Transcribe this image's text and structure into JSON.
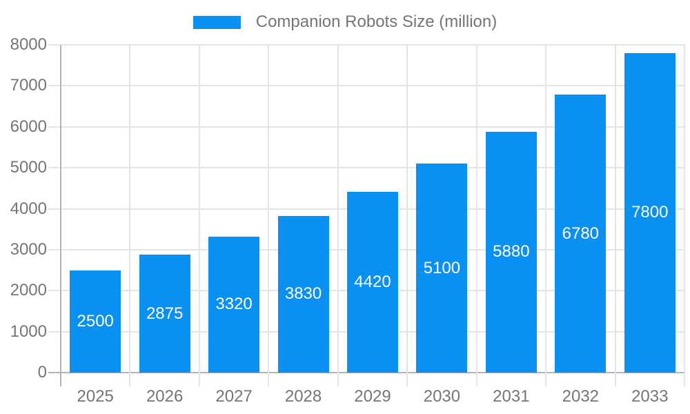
{
  "legend": {
    "label": "Companion Robots Size (million)"
  },
  "chart_data": {
    "type": "bar",
    "title": "Companion Robots Size (million)",
    "series": [
      {
        "name": "Companion Robots Size (million)",
        "values": [
          2500,
          2875,
          3320,
          3830,
          4420,
          5100,
          5880,
          6780,
          7800
        ]
      }
    ],
    "categories": [
      "2025",
      "2026",
      "2027",
      "2028",
      "2029",
      "2030",
      "2031",
      "2032",
      "2033"
    ],
    "bar_labels": [
      2500,
      2875,
      3320,
      3830,
      4420,
      5100,
      5880,
      6780,
      7800
    ],
    "xlabel": "",
    "ylabel": "",
    "ylim": [
      0,
      8000
    ],
    "yticks": [
      0,
      1000,
      2000,
      3000,
      4000,
      5000,
      6000,
      7000,
      8000
    ],
    "grid": true,
    "legend_position": "top-center",
    "value_labels_inside_bars": true,
    "colors": {
      "bar": "#0a8ff2",
      "bar_value_text": "#ffffff",
      "axis_text": "#757575",
      "grid_line": "#e4e4e4",
      "axis_line": "#b3b3b3",
      "background": "#ffffff"
    }
  }
}
